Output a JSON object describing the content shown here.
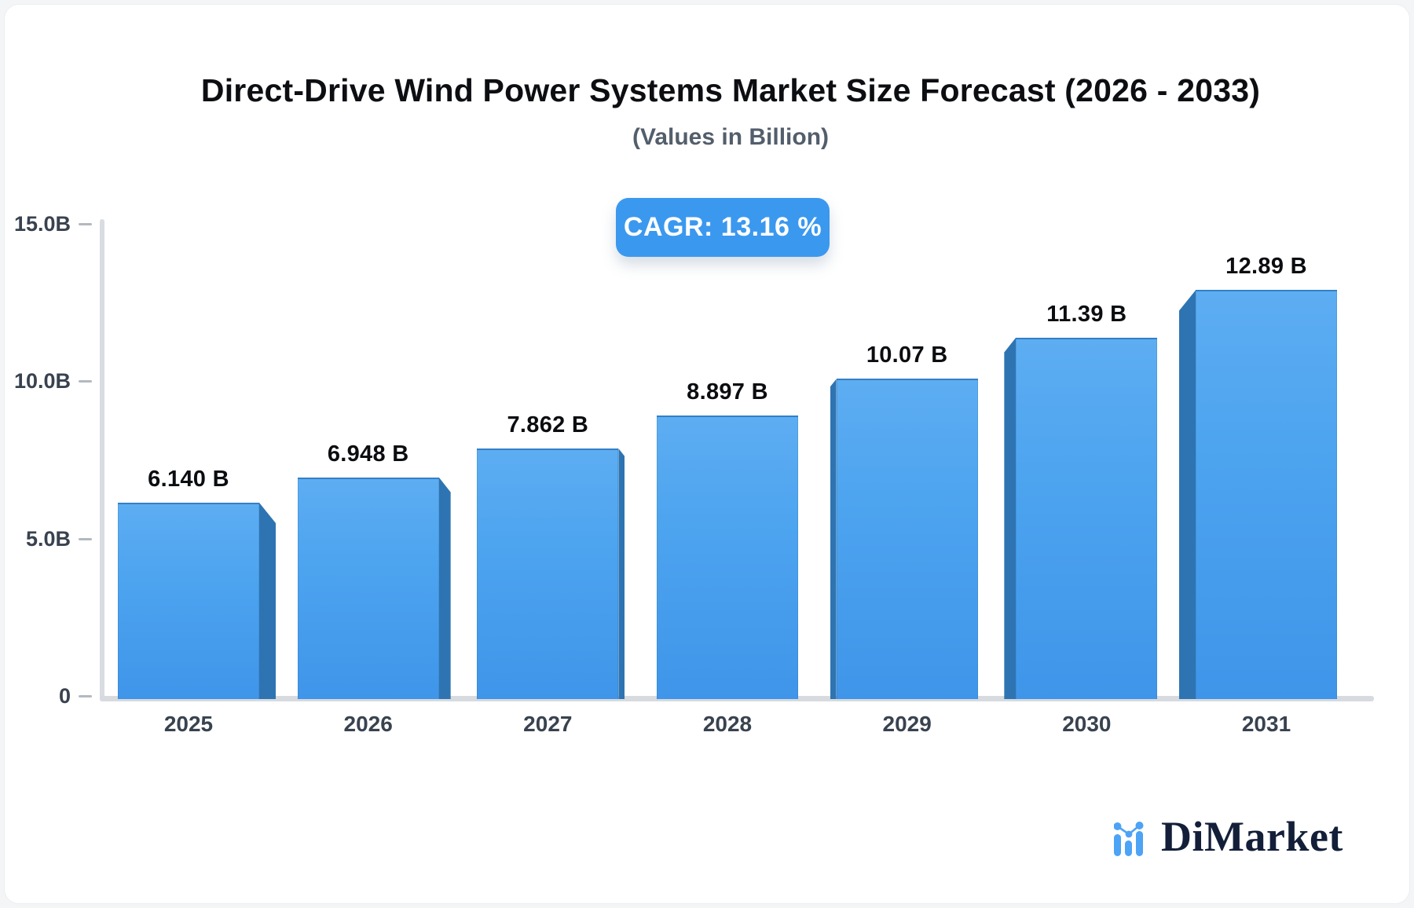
{
  "page": {
    "background_color": "#f3f5f7",
    "card_color": "#ffffff"
  },
  "header": {
    "title": "Direct-Drive Wind Power Systems Market Size Forecast (2026 - 2033)",
    "subtitle": "(Values in Billion)"
  },
  "cagr_badge": {
    "label": "CAGR: 13.16 %",
    "color": "#3b98ef"
  },
  "chart_data": {
    "type": "bar",
    "title": "Direct-Drive Wind Power Systems Market Size Forecast (2026 - 2033)",
    "subtitle": "(Values in Billion)",
    "categories": [
      "2025",
      "2026",
      "2027",
      "2028",
      "2029",
      "2030",
      "2031"
    ],
    "values": [
      6.14,
      6.948,
      7.862,
      8.897,
      10.07,
      11.39,
      12.89
    ],
    "bar_labels": [
      "6.140 B",
      "6.948 B",
      "7.862 B",
      "8.897 B",
      "10.07 B",
      "11.39 B",
      "12.89 B"
    ],
    "xlabel": "",
    "ylabel": "",
    "ylim": [
      0,
      15
    ],
    "yticks": [
      {
        "label": "15.0B",
        "value": 15.0
      },
      {
        "label": "10.0B",
        "value": 10.0
      },
      {
        "label": "5.0B",
        "value": 5.0
      },
      {
        "label": "0",
        "value": 0
      }
    ],
    "grid": false,
    "legend": "none",
    "colors": {
      "bar_face_top": "#5dadf2",
      "bar_face_bottom": "#3f95e9",
      "bar_side": "#2e74b2",
      "axis_line": "#d9dce1",
      "tick_text": "#39424f",
      "value_text": "#0b0d10"
    }
  },
  "branding": {
    "name": "DiMarket",
    "icon": "bar-line-chart-logo-icon",
    "icon_color": "#4da3f5",
    "text_color": "#131f39"
  }
}
